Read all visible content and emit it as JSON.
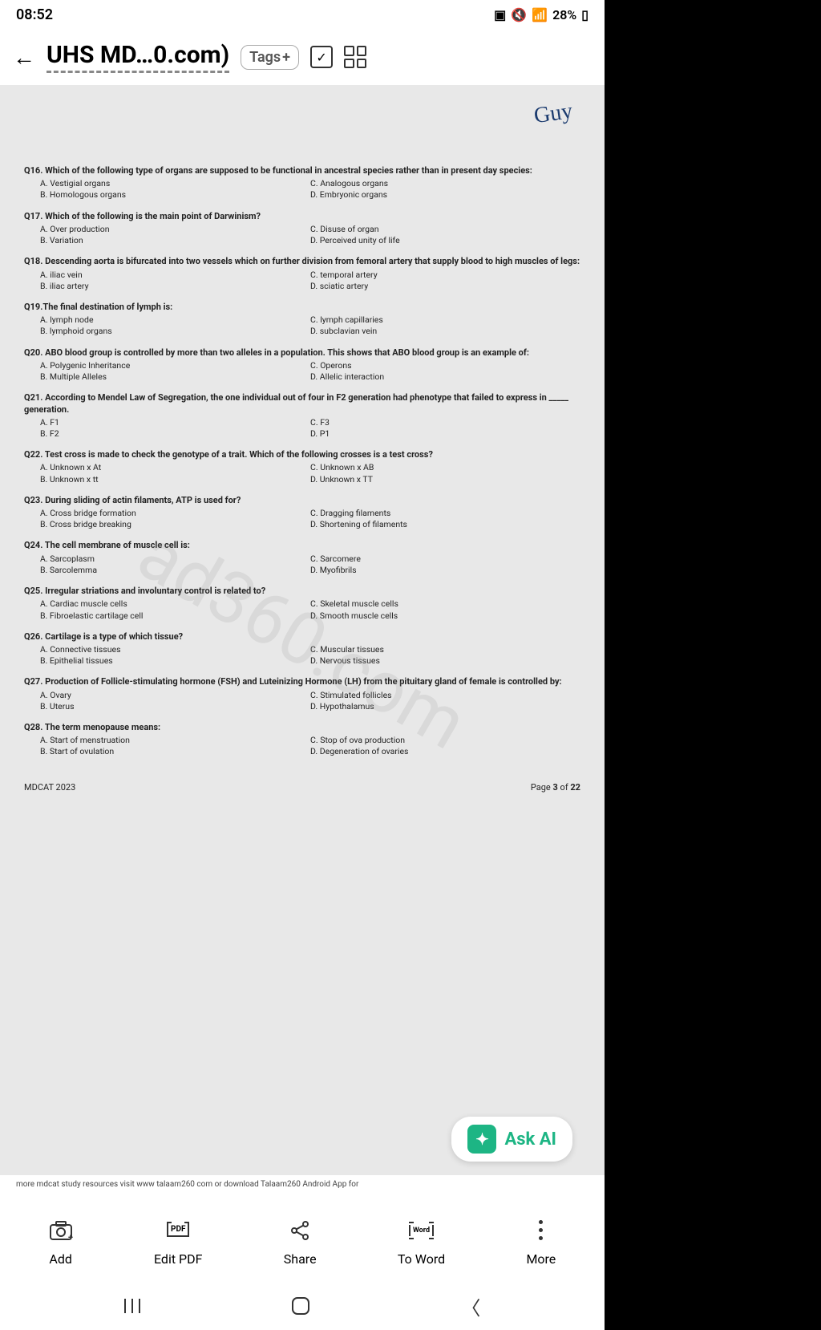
{
  "status": {
    "time": "08:52",
    "battery": "28%"
  },
  "header": {
    "title": "UHS MD…0.com)",
    "tags_label": "Tags"
  },
  "document": {
    "signature": "Guy",
    "watermark": "ad360.com",
    "footer_left": "MDCAT 2023",
    "footer_right_prefix": "Page ",
    "footer_page": "3",
    "footer_of": " of ",
    "footer_total": "22",
    "cutoff": "more mdcat study resources  visit www talaam260 com  or download Talaam260 Android App for"
  },
  "questions": [
    {
      "q": "Q16. Which of the following type of organs are supposed to be functional in ancestral species rather than in present day species:",
      "a": "A.  Vestigial organs",
      "b": "B.  Homologous organs",
      "c": "C.  Analogous organs",
      "d": "D.  Embryonic organs"
    },
    {
      "q": "Q17. Which of the following is the main point of Darwinism?",
      "a": "A.  Over production",
      "b": "B.  Variation",
      "c": "C.  Disuse of organ",
      "d": "D.  Perceived unity of life"
    },
    {
      "q": "Q18. Descending aorta is bifurcated into two vessels which on further division from femoral artery that supply blood to high muscles of legs:",
      "a": "A.  iliac vein",
      "b": "B.  iliac artery",
      "c": "C.  temporal artery",
      "d": "D.  sciatic artery"
    },
    {
      "q": "Q19.The final destination of lymph is:",
      "a": "A.  lymph node",
      "b": "B.  lymphoid organs",
      "c": "C.  lymph capillaries",
      "d": "D.  subclavian vein"
    },
    {
      "q": "Q20. ABO blood group is controlled by more than two alleles in a population. This shows that ABO blood group is an example of:",
      "a": "A.  Polygenic Inheritance",
      "b": "B.  Multiple Alleles",
      "c": "C.  Operons",
      "d": "D.  Allelic interaction"
    },
    {
      "q": "Q21. According to Mendel Law of Segregation, the one individual out of four in F2 generation had phenotype that failed to express in _____ generation.",
      "a": "A.  F1",
      "b": "B.  F2",
      "c": "C.  F3",
      "d": "D.  P1"
    },
    {
      "q": "Q22. Test cross is made to check the genotype of a trait. Which of the following crosses is a test cross?",
      "a": "A.  Unknown x At",
      "b": "B.  Unknown x tt",
      "c": "C.  Unknown x AB",
      "d": "D.  Unknown x TT"
    },
    {
      "q": "Q23. During sliding of actin filaments, ATP is used for?",
      "a": "A.  Cross bridge formation",
      "b": "B.  Cross bridge breaking",
      "c": "C.  Dragging filaments",
      "d": "D.  Shortening of filaments"
    },
    {
      "q": "Q24. The cell membrane of muscle cell is:",
      "a": "A.  Sarcoplasm",
      "b": "B.  Sarcolemma",
      "c": "C.  Sarcomere",
      "d": "D.  Myofibrils"
    },
    {
      "q": "Q25. Irregular striations and involuntary control is related to?",
      "a": "A.  Cardiac muscle cells",
      "b": "B.  Fibroelastic cartilage cell",
      "c": "C.  Skeletal muscle cells",
      "d": "D.  Smooth muscle cells"
    },
    {
      "q": "Q26. Cartilage is a type of which tissue?",
      "a": "A.  Connective tissues",
      "b": "B.  Epithelial tissues",
      "c": "C.  Muscular tissues",
      "d": "D.  Nervous tissues"
    },
    {
      "q": "Q27. Production of Follicle-stimulating hormone (FSH) and Luteinizing Hormone (LH) from the pituitary gland of female is controlled by:",
      "a": "A.  Ovary",
      "b": "B.  Uterus",
      "c": "C.  Stimulated follicles",
      "d": "D.  Hypothalamus"
    },
    {
      "q": "Q28. The term menopause means:",
      "a": "A.  Start of menstruation",
      "b": "B.  Start of ovulation",
      "c": "C.  Stop of ova production",
      "d": "D.  Degeneration of ovaries"
    }
  ],
  "ask_ai": {
    "label": "Ask AI"
  },
  "toolbar": {
    "add": "Add",
    "edit": "Edit PDF",
    "share": "Share",
    "word": "To Word",
    "more": "More",
    "pdf_badge": "PDF",
    "word_badge": "Word"
  }
}
